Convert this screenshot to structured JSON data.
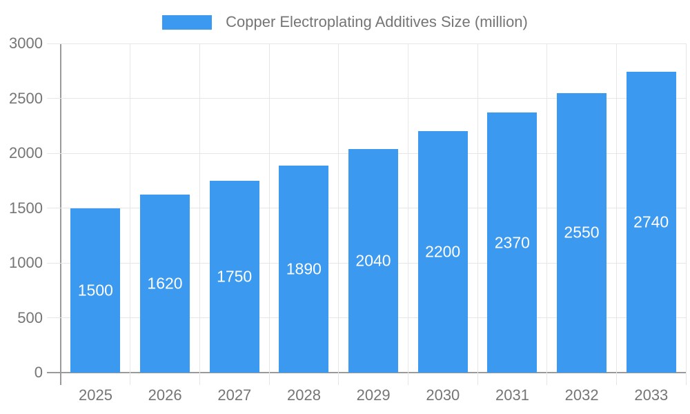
{
  "chart_data": {
    "type": "bar",
    "title": "Copper Electroplating Additives Size (million)",
    "categories": [
      "2025",
      "2026",
      "2027",
      "2028",
      "2029",
      "2030",
      "2031",
      "2032",
      "2033"
    ],
    "values": [
      1500,
      1620,
      1750,
      1890,
      2040,
      2200,
      2370,
      2550,
      2740
    ],
    "xlabel": "",
    "ylabel": "",
    "ylim": [
      0,
      3000
    ],
    "yticks": [
      0,
      500,
      1000,
      1500,
      2000,
      2500,
      3000
    ],
    "legend_position": "top-center",
    "grid": true,
    "bar_color": "#3b99ef",
    "bar_label_color": "#ffffff",
    "axis_text_color": "#757575",
    "grid_color": "#e6e6e6",
    "axis_line_color": "#9a9a9a",
    "background_color": "#ffffff"
  }
}
